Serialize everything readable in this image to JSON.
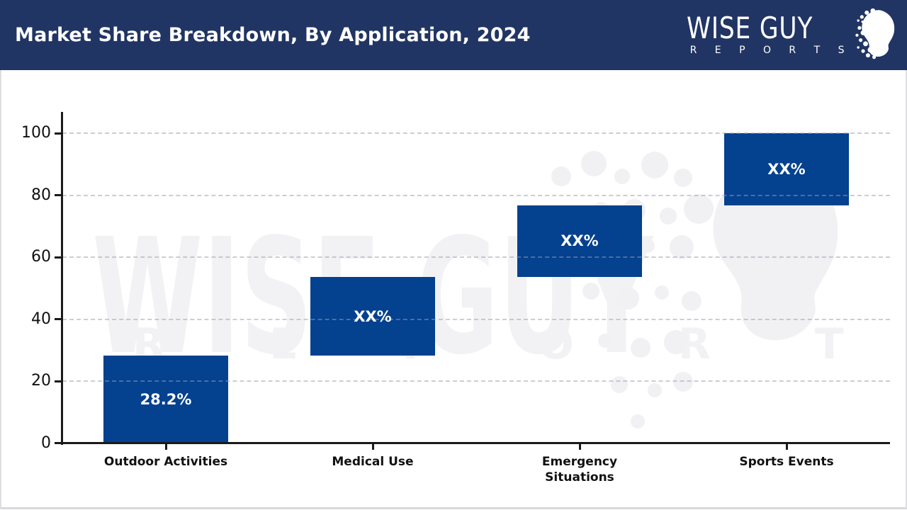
{
  "header": {
    "title": "Market Share Breakdown, By Application, 2024",
    "logo": {
      "line1": "WISE GUY",
      "line2": "R E P O R T S"
    }
  },
  "watermark": {
    "line1": "WISE GUY",
    "line2": "R E P O R T S"
  },
  "chart_data": {
    "type": "bar",
    "subtype": "waterfall",
    "title": "Market Share Breakdown, By Application, 2024",
    "categories": [
      "Outdoor Activities",
      "Medical Use",
      "Emergency Situations",
      "Sports Events"
    ],
    "bars": [
      {
        "category": "Outdoor Activities",
        "category_lines": [
          "Outdoor Activities"
        ],
        "start": 0,
        "end": 28.2,
        "label": "28.2%"
      },
      {
        "category": "Medical Use",
        "category_lines": [
          "Medical Use"
        ],
        "start": 28.2,
        "end": 53.5,
        "label": "XX%"
      },
      {
        "category": "Emergency Situations",
        "category_lines": [
          "Emergency",
          "Situations"
        ],
        "start": 53.5,
        "end": 76.8,
        "label": "XX%"
      },
      {
        "category": "Sports Events",
        "category_lines": [
          "Sports Events"
        ],
        "start": 76.8,
        "end": 100,
        "label": "XX%"
      }
    ],
    "yticks": [
      0,
      20,
      40,
      60,
      80,
      100
    ],
    "ylim": [
      0,
      106
    ],
    "xlabel": "",
    "ylabel": "",
    "legend": null,
    "grid": "horizontal-dashed",
    "colors": {
      "header_bg": "#213564",
      "bar": "#04418f",
      "bar_label": "#ffffff",
      "grid_line": "#d9d9d9",
      "axis": "#1a1a1a",
      "tick_text": "#111111",
      "watermark": "#f2f2f5"
    }
  }
}
